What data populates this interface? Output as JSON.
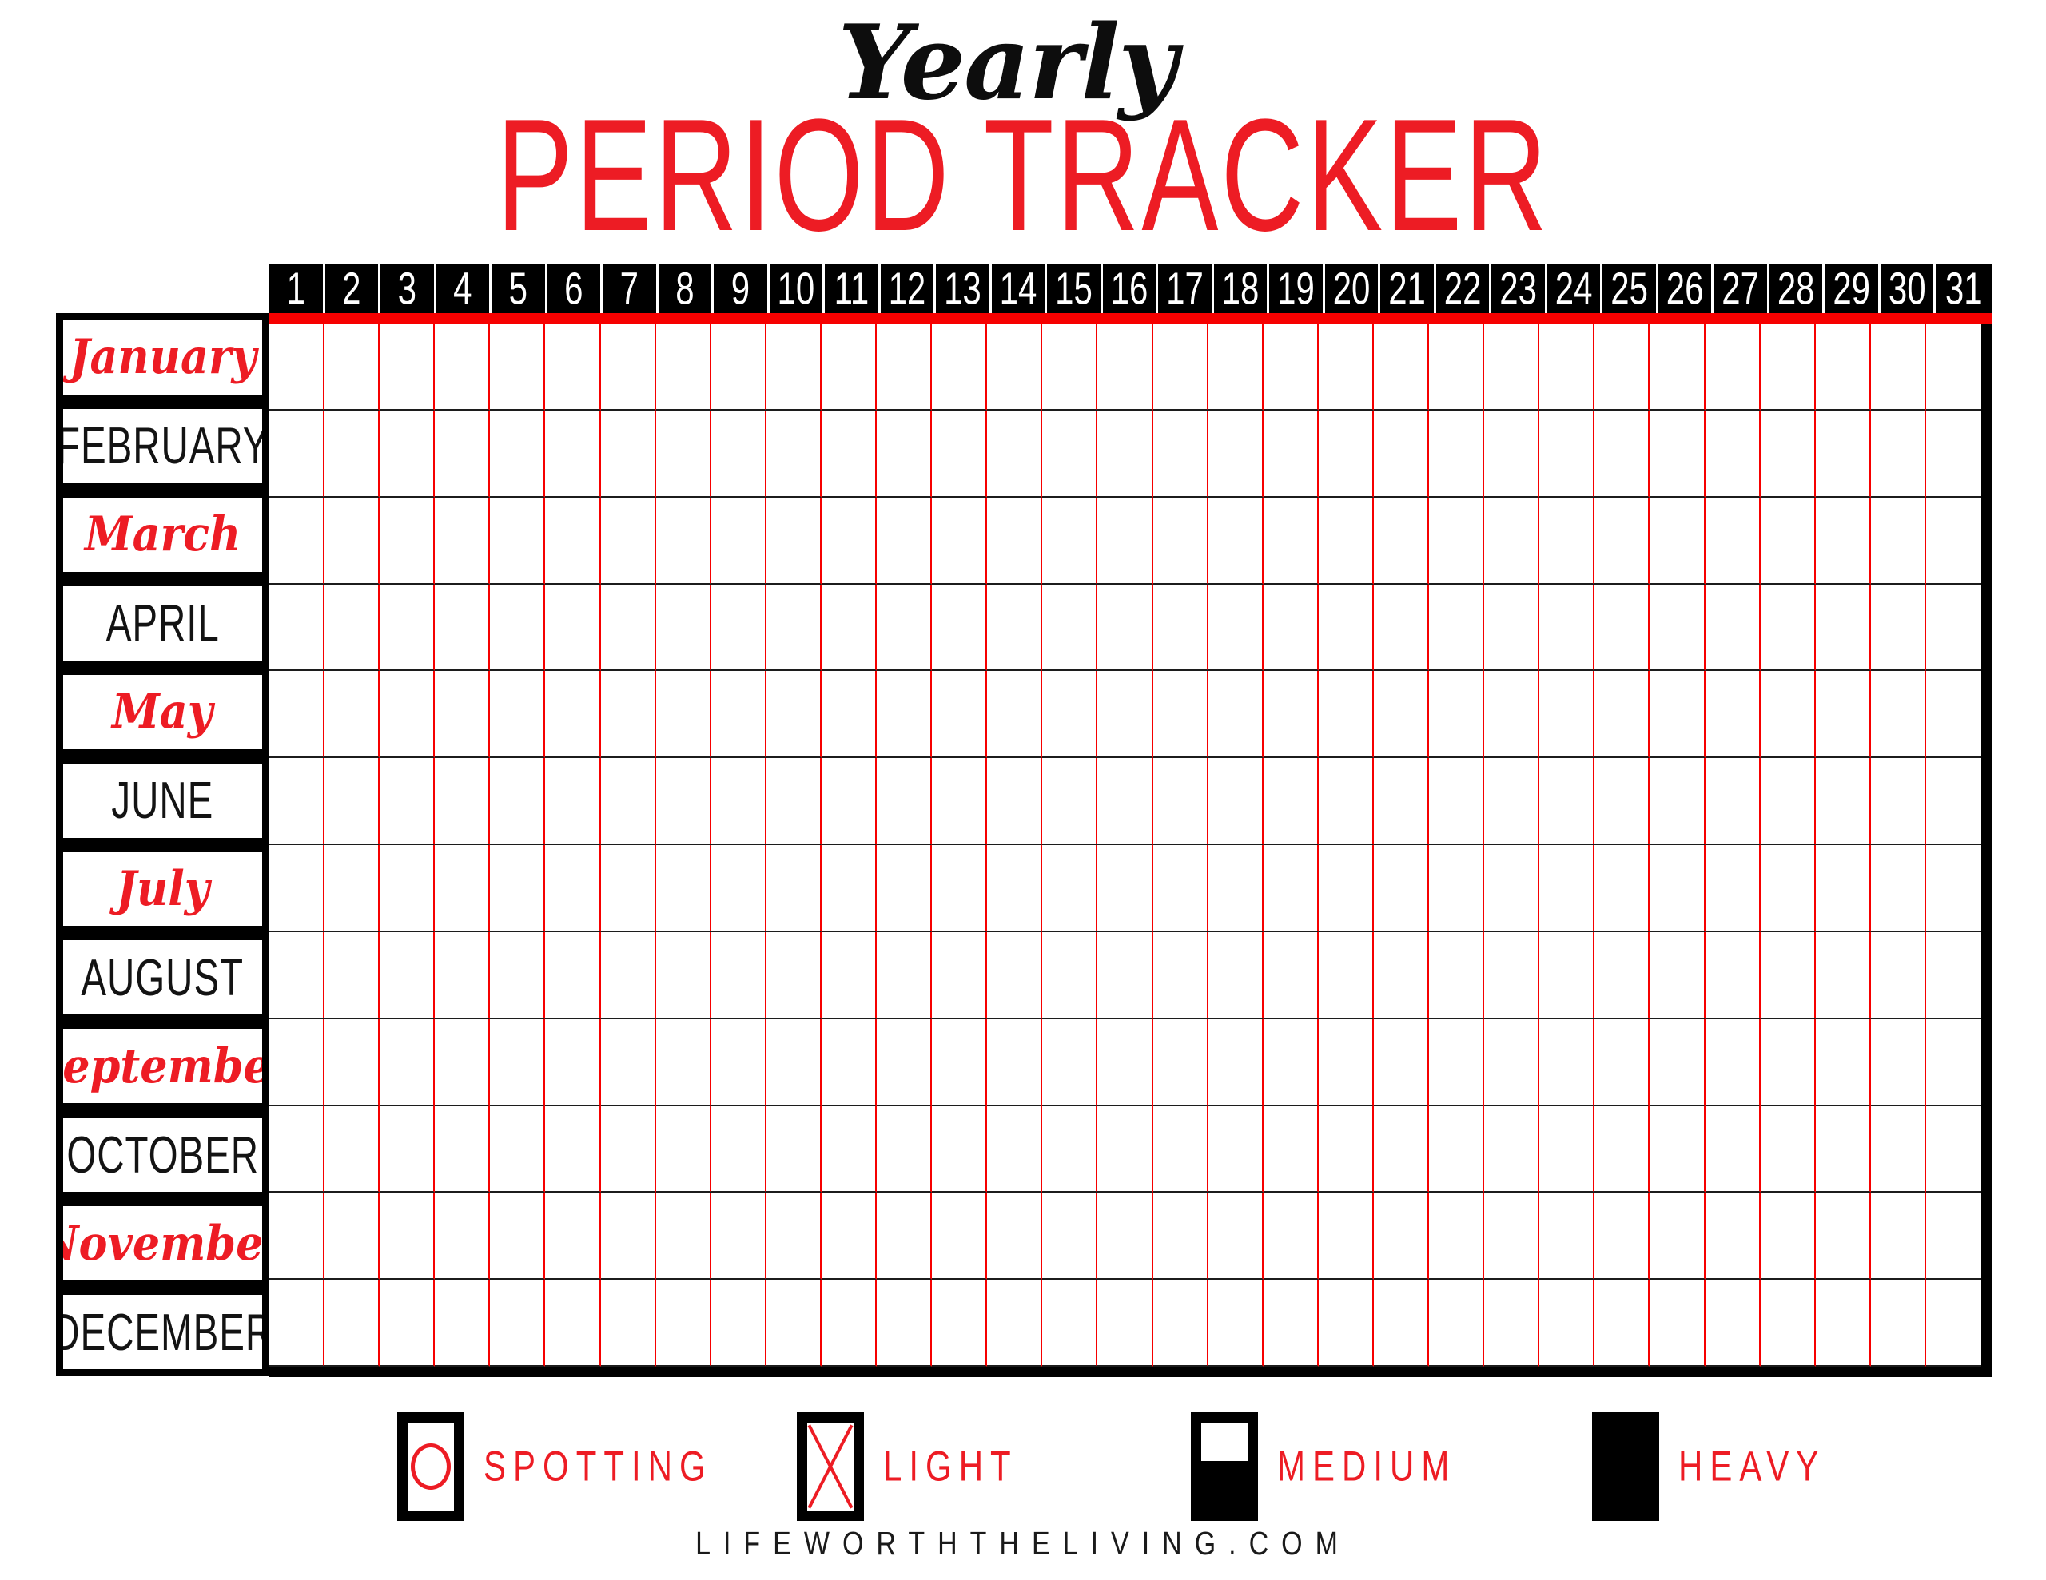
{
  "title": {
    "script": "Yearly",
    "main": "PERIOD TRACKER"
  },
  "colors": {
    "accent_red": "#ED1C24",
    "grid_line_red": "#F60000",
    "header_bg": "#000000",
    "text_black": "#131313"
  },
  "table": {
    "day_numbers": [
      "1",
      "2",
      "3",
      "4",
      "5",
      "6",
      "7",
      "8",
      "9",
      "10",
      "11",
      "12",
      "13",
      "14",
      "15",
      "16",
      "17",
      "18",
      "19",
      "20",
      "21",
      "22",
      "23",
      "24",
      "25",
      "26",
      "27",
      "28",
      "29",
      "30",
      "31"
    ],
    "months": [
      {
        "label": "January",
        "style": "script"
      },
      {
        "label": "FEBRUARY",
        "style": "caps"
      },
      {
        "label": "March",
        "style": "script"
      },
      {
        "label": "APRIL",
        "style": "caps"
      },
      {
        "label": "May",
        "style": "script"
      },
      {
        "label": "JUNE",
        "style": "caps"
      },
      {
        "label": "July",
        "style": "script"
      },
      {
        "label": "AUGUST",
        "style": "caps"
      },
      {
        "label": "September",
        "style": "script"
      },
      {
        "label": "OCTOBER",
        "style": "caps"
      },
      {
        "label": "November",
        "style": "script"
      },
      {
        "label": "DECEMBER",
        "style": "caps"
      }
    ],
    "rows": 12,
    "columns": 31
  },
  "legend": [
    {
      "label": "SPOTTING",
      "symbol": "spotting-circle"
    },
    {
      "label": "LIGHT",
      "symbol": "light-x"
    },
    {
      "label": "MEDIUM",
      "symbol": "medium-half"
    },
    {
      "label": "HEAVY",
      "symbol": "heavy-filled"
    }
  ],
  "footer": {
    "website": "LIFEWORTHTHELIVING.COM"
  }
}
